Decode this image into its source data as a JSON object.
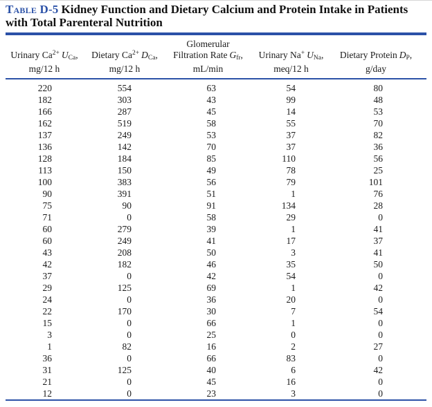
{
  "title": {
    "label": "Table D-5",
    "text": "Kidney Function and Dietary Calcium and Protein Intake in Patients with Total Parenteral Nutrition"
  },
  "colors": {
    "accent_blue": "#2b51a7",
    "text": "#1a1a1a"
  },
  "table": {
    "columns": [
      {
        "line1": "",
        "name": "Urinary Ca",
        "sup": "2+",
        "var": "U",
        "sub": "Ca",
        "comma": ",",
        "units": "mg/12 h"
      },
      {
        "line1": "",
        "name": "Dietary Ca",
        "sup": "2+",
        "var": "D",
        "sub": "Ca",
        "comma": ",",
        "units": "mg/12 h"
      },
      {
        "line1": "Glomerular",
        "name": "Filtration Rate",
        "sup": "",
        "var": "G",
        "sub": "fr",
        "comma": ",",
        "units": "mL/min"
      },
      {
        "line1": "",
        "name": "Urinary Na",
        "sup": "+",
        "var": "U",
        "sub": "Na",
        "comma": ",",
        "units": "meq/12 h"
      },
      {
        "line1": "",
        "name": "Dietary Protein",
        "sup": "",
        "var": "D",
        "sub": "P",
        "comma": ",",
        "units": "g/day"
      }
    ],
    "rows": [
      [
        "220",
        "554",
        "63",
        "54",
        "80"
      ],
      [
        "182",
        "303",
        "43",
        "99",
        "48"
      ],
      [
        "166",
        "287",
        "45",
        "14",
        "53"
      ],
      [
        "162",
        "519",
        "58",
        "55",
        "70"
      ],
      [
        "137",
        "249",
        "53",
        "37",
        "82"
      ],
      [
        "136",
        "142",
        "70",
        "37",
        "36"
      ],
      [
        "128",
        "184",
        "85",
        "110",
        "56"
      ],
      [
        "113",
        "150",
        "49",
        "78",
        "25"
      ],
      [
        "100",
        "383",
        "56",
        "79",
        "101"
      ],
      [
        "90",
        "391",
        "51",
        "1",
        "76"
      ],
      [
        "75",
        "90",
        "91",
        "134",
        "28"
      ],
      [
        "71",
        "0",
        "58",
        "29",
        "0"
      ],
      [
        "60",
        "279",
        "39",
        "1",
        "41"
      ],
      [
        "60",
        "249",
        "41",
        "17",
        "37"
      ],
      [
        "43",
        "208",
        "50",
        "3",
        "41"
      ],
      [
        "42",
        "182",
        "46",
        "35",
        "50"
      ],
      [
        "37",
        "0",
        "42",
        "54",
        "0"
      ],
      [
        "29",
        "125",
        "69",
        "1",
        "42"
      ],
      [
        "24",
        "0",
        "36",
        "20",
        "0"
      ],
      [
        "22",
        "170",
        "30",
        "7",
        "54"
      ],
      [
        "15",
        "0",
        "66",
        "1",
        "0"
      ],
      [
        "3",
        "0",
        "25",
        "0",
        "0"
      ],
      [
        "1",
        "82",
        "16",
        "2",
        "27"
      ],
      [
        "36",
        "0",
        "66",
        "83",
        "0"
      ],
      [
        "31",
        "125",
        "40",
        "6",
        "42"
      ],
      [
        "21",
        "0",
        "45",
        "16",
        "0"
      ],
      [
        "12",
        "0",
        "23",
        "3",
        "0"
      ]
    ]
  }
}
